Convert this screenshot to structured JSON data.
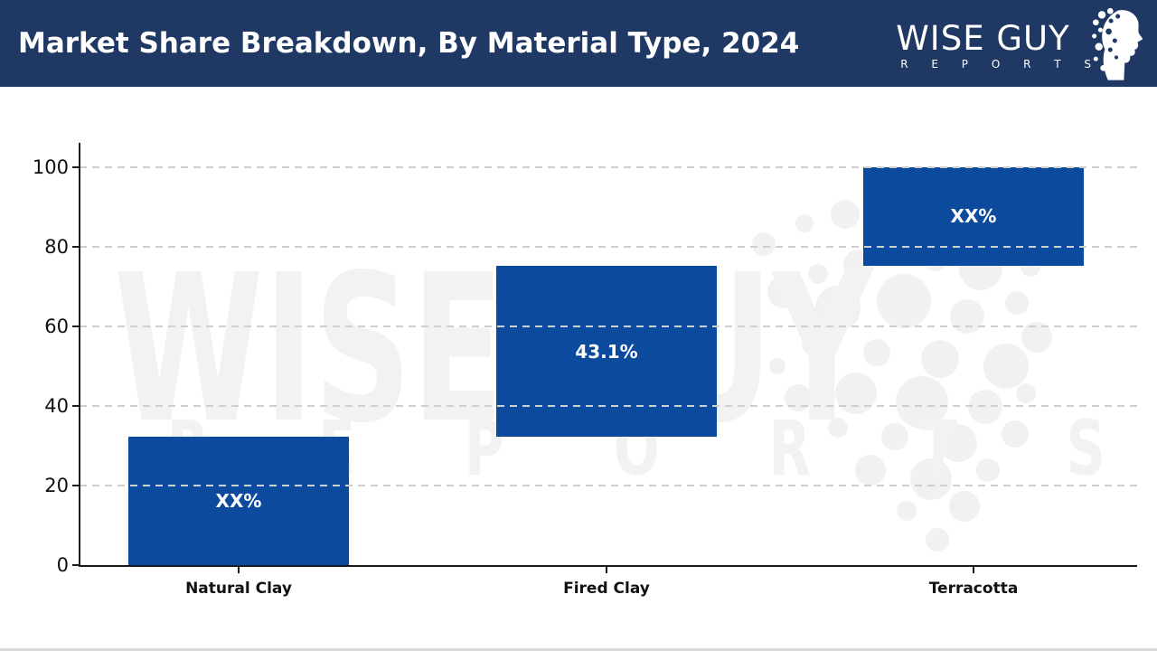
{
  "header": {
    "title": "Market Share Breakdown, By Material Type, 2024",
    "bg_color": "#1f3864",
    "logo": {
      "line1": "WISE GUY",
      "line2": "R E P O R T S"
    }
  },
  "watermark": {
    "line1": "WISE GUY",
    "line2": "R E P O R T S"
  },
  "chart_data": {
    "type": "bar",
    "subtype": "waterfall-floating-bars",
    "title": "Market Share Breakdown, By Material Type, 2024",
    "categories": [
      "Natural Clay",
      "Fired Clay",
      "Terracotta"
    ],
    "series": [
      {
        "name": "Market Share (%)",
        "segments": [
          {
            "category": "Natural Clay",
            "start": 0,
            "end": 32.2,
            "label": "XX%"
          },
          {
            "category": "Fired Clay",
            "start": 32.2,
            "end": 75.3,
            "label": "43.1%"
          },
          {
            "category": "Terracotta",
            "start": 75.3,
            "end": 100,
            "label": "XX%"
          }
        ]
      }
    ],
    "xlabel": "",
    "ylabel": "",
    "ylim": [
      0,
      100
    ],
    "yticks": [
      0,
      20,
      40,
      60,
      80,
      100
    ],
    "grid": "horizontal-dashed",
    "legend": "none",
    "bar_color": "#0c4a9e",
    "bar_label_color": "#ffffff"
  }
}
